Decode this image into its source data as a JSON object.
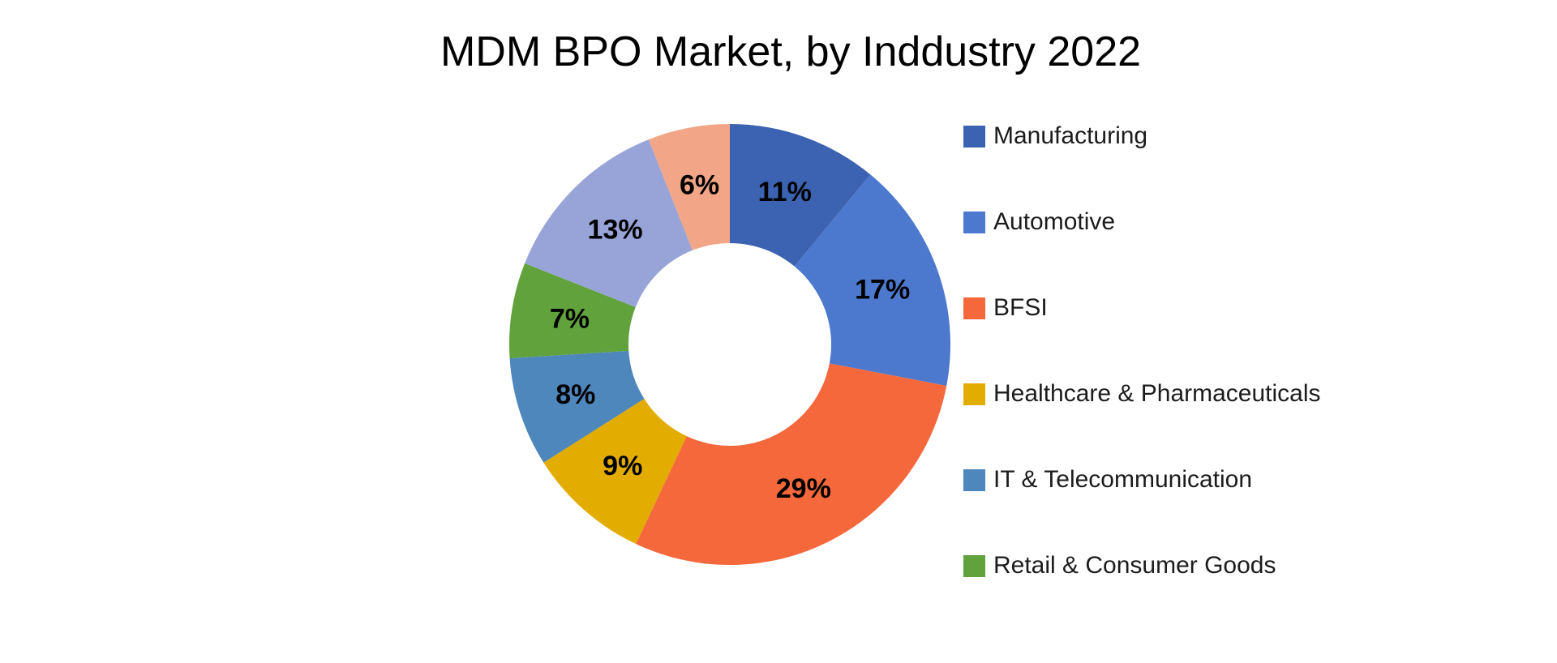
{
  "title": "MDM BPO Market, by Inddustry 2022",
  "background_color": "#ffffff",
  "chart_data": {
    "type": "pie",
    "subtype": "donut",
    "title": "MDM BPO Market, by Inddustry 2022",
    "legend_position": "right",
    "data_labels": "percent",
    "start_angle_deg": 0,
    "direction": "clockwise",
    "series": [
      {
        "label": "Manufacturing",
        "value": 11,
        "data_label": "11%",
        "color": "#3c63b2",
        "in_legend": true
      },
      {
        "label": "Automotive",
        "value": 17,
        "data_label": "17%",
        "color": "#4c79ce",
        "in_legend": true
      },
      {
        "label": "BFSI",
        "value": 29,
        "data_label": "29%",
        "color": "#f4683c",
        "in_legend": true
      },
      {
        "label": "Healthcare & Pharmaceuticals",
        "value": 9,
        "data_label": "9%",
        "color": "#e3ac00",
        "in_legend": true
      },
      {
        "label": "IT & Telecommunication",
        "value": 8,
        "data_label": "8%",
        "color": "#4e87bc",
        "in_legend": true
      },
      {
        "label": "Retail & Consumer Goods",
        "value": 7,
        "data_label": "7%",
        "color": "#61a23d",
        "in_legend": true
      },
      {
        "label": "",
        "value": 13,
        "data_label": "13%",
        "color": "#98a4d8",
        "in_legend": false
      },
      {
        "label": "",
        "value": 6,
        "data_label": "6%",
        "color": "#f2a687",
        "in_legend": false
      }
    ]
  }
}
